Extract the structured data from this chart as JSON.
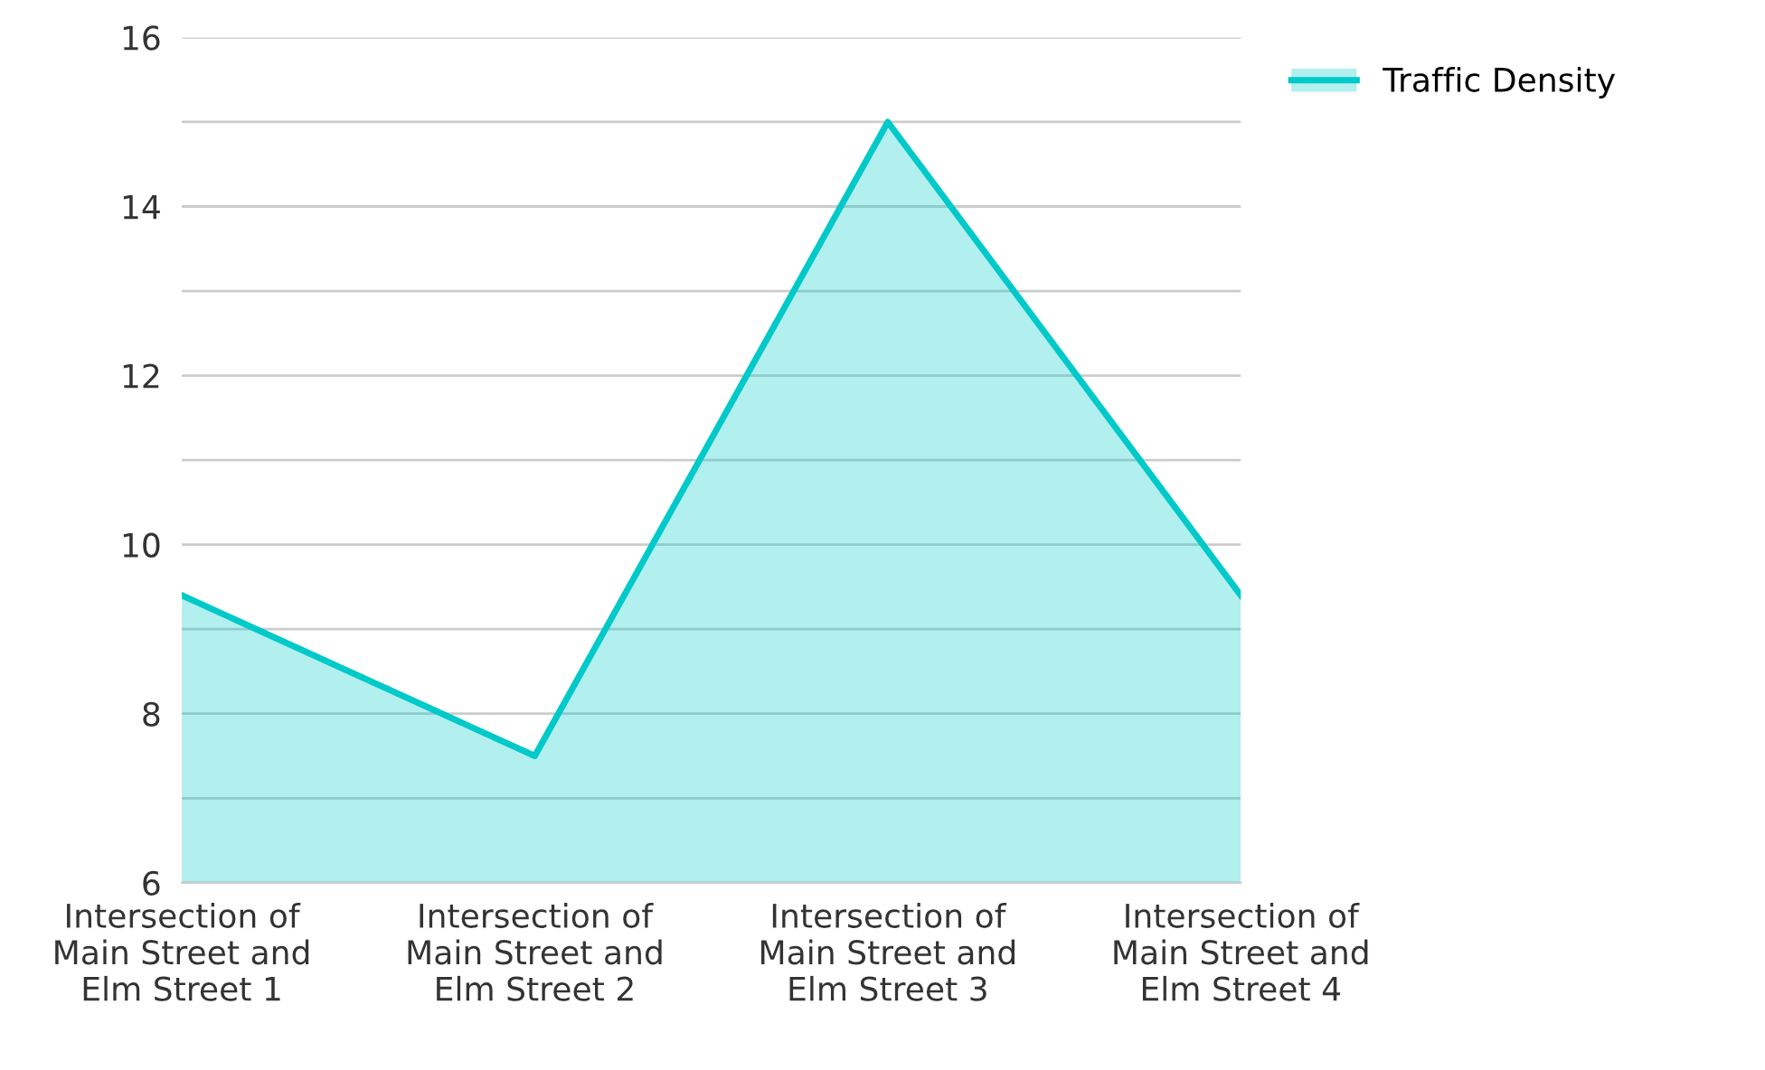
{
  "chart_data": {
    "type": "area",
    "categories": [
      "Intersection of\nMain Street and\nElm Street 1",
      "Intersection of\nMain Street and\nElm Street 2",
      "Intersection of\nMain Street and\nElm Street 3",
      "Intersection of\nMain Street and\nElm Street 4"
    ],
    "series": [
      {
        "name": "Traffic Density",
        "color": "#00c9c9",
        "values": [
          9.4,
          7.5,
          15,
          9.4
        ]
      }
    ],
    "ylim": [
      6,
      16
    ],
    "yticks": [
      6,
      {
        "value": 7,
        "label": null
      },
      8,
      {
        "value": 9,
        "label": null
      },
      10,
      {
        "value": 11,
        "label": null
      },
      12,
      {
        "value": 13,
        "label": null
      },
      14,
      {
        "value": 15,
        "label": null
      },
      16
    ],
    "grid": "y",
    "legend": "top right"
  }
}
